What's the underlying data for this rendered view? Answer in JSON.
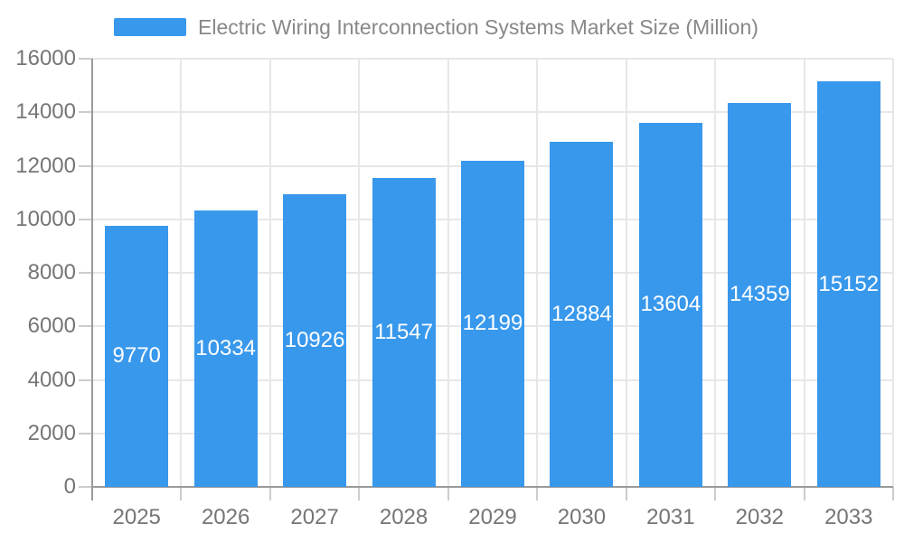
{
  "chart_data": {
    "type": "bar",
    "title": "Electric Wiring Interconnection Systems Market Size (Million)",
    "legend": [
      "Electric Wiring Interconnection Systems Market Size (Million)"
    ],
    "legend_position": "top",
    "categories": [
      "2025",
      "2026",
      "2027",
      "2028",
      "2029",
      "2030",
      "2031",
      "2032",
      "2033"
    ],
    "values": [
      9770,
      10334,
      10926,
      11547,
      12199,
      12884,
      13604,
      14359,
      15152
    ],
    "xlabel": "",
    "ylabel": "",
    "ylim": [
      0,
      16000
    ],
    "yticks": [
      0,
      2000,
      4000,
      6000,
      8000,
      10000,
      12000,
      14000,
      16000
    ],
    "grid": "horizontal and vertical light gridlines",
    "value_labels": "white numbers centered vertically inside each bar",
    "colors": {
      "bar": "#3898EC",
      "value_label": "#FFFFFF",
      "legend_text": "#888888",
      "tick_label": "#757575",
      "axis_line": "#9A9A9A",
      "tick_mark": "#CCCCCC",
      "gridline": "#E7E7E7",
      "background": "#FFFFFF"
    }
  }
}
